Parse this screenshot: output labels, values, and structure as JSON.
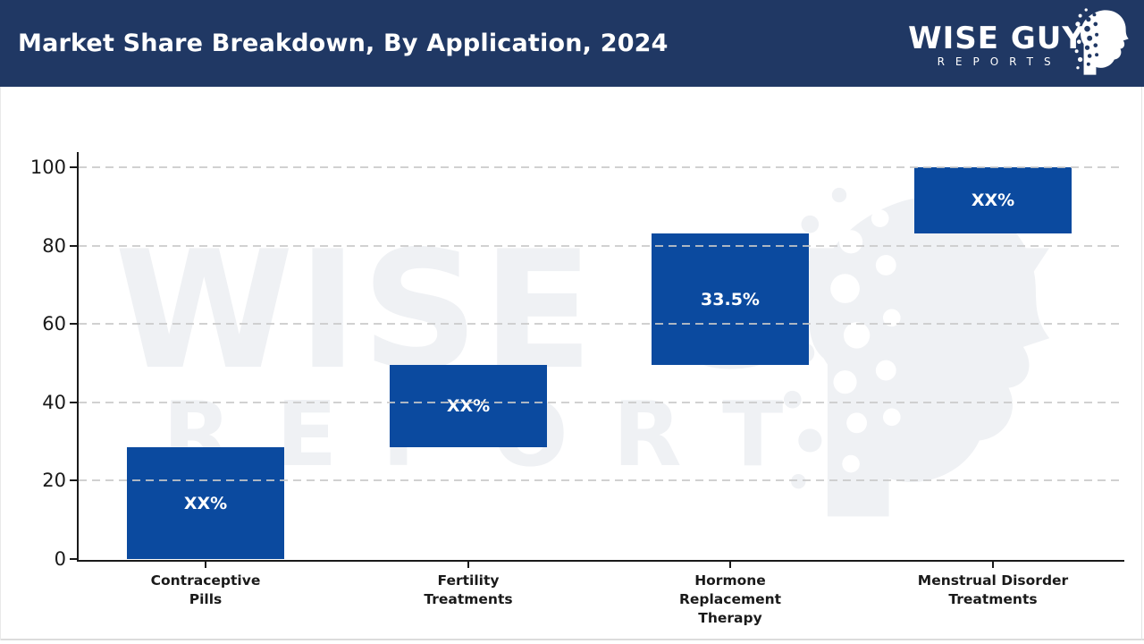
{
  "header": {
    "title": "Market Share Breakdown, By Application, 2024",
    "logo": {
      "name": "WISE GUY",
      "subtitle": "REPORTS",
      "icon": "wiseguy-face-icon"
    }
  },
  "watermark": {
    "word": "WISE GUY",
    "subtitle": "REPORTS",
    "icon": "watermark-face-icon"
  },
  "colors": {
    "header_bg": "#203864",
    "bar": "#0b4a9f",
    "bar_label": "#ffffff",
    "grid": "#c9c9c9",
    "axis": "#1a1a1a",
    "watermark": "#eff1f4"
  },
  "chart_data": {
    "type": "bar",
    "subtype": "waterfall-floating-bars",
    "title": "Market Share Breakdown, By Application, 2024",
    "categories": [
      "Contraceptive\nPills",
      "Fertility\nTreatments",
      "Hormone\nReplacement\nTherapy",
      "Menstrual Disorder\nTreatments"
    ],
    "segments": [
      {
        "category": "Contraceptive Pills",
        "start": 0,
        "end": 28.5,
        "label": "XX%"
      },
      {
        "category": "Fertility Treatments",
        "start": 28.5,
        "end": 49.5,
        "label": "XX%"
      },
      {
        "category": "Hormone Replacement Therapy",
        "start": 49.5,
        "end": 83,
        "label": "33.5%",
        "value": 33.5
      },
      {
        "category": "Menstrual Disorder Treatments",
        "start": 83,
        "end": 100,
        "label": "XX%"
      }
    ],
    "ylim": [
      0,
      100
    ],
    "yticks": [
      0,
      20,
      40,
      60,
      80,
      100
    ],
    "grid": "dashed-horizontal",
    "legend": null
  }
}
